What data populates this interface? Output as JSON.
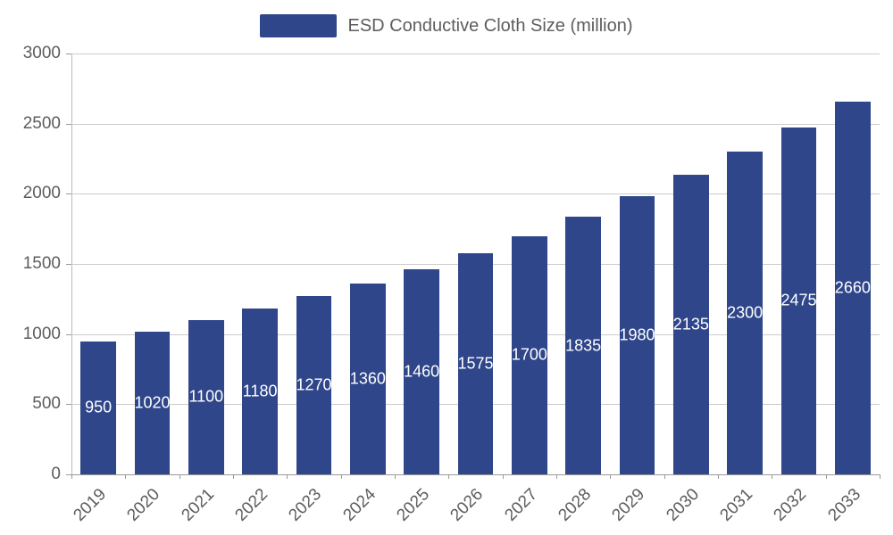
{
  "chart_data": {
    "type": "bar",
    "title": "ESD Conductive Cloth Size (million)",
    "categories": [
      "2019",
      "2020",
      "2021",
      "2022",
      "2023",
      "2024",
      "2025",
      "2026",
      "2027",
      "2028",
      "2029",
      "2030",
      "2031",
      "2032",
      "2033"
    ],
    "values": [
      950,
      1020,
      1100,
      1180,
      1270,
      1360,
      1460,
      1575,
      1700,
      1835,
      1980,
      2135,
      2300,
      2475,
      2660
    ],
    "xlabel": "",
    "ylabel": "",
    "ylim": [
      0,
      3000
    ],
    "yticks": [
      0,
      500,
      1000,
      1500,
      2000,
      2500,
      3000
    ],
    "grid": true,
    "legend_position": "top",
    "colors": {
      "bar": "#2f468a",
      "bar_label": "#ffffff",
      "axis_text": "#5d5d5d",
      "gridline": "#cccccc",
      "axis_line": "#999999"
    },
    "legend": {
      "label": "ESD Conductive Cloth Size (million)",
      "swatch_color": "#2f468a"
    }
  }
}
